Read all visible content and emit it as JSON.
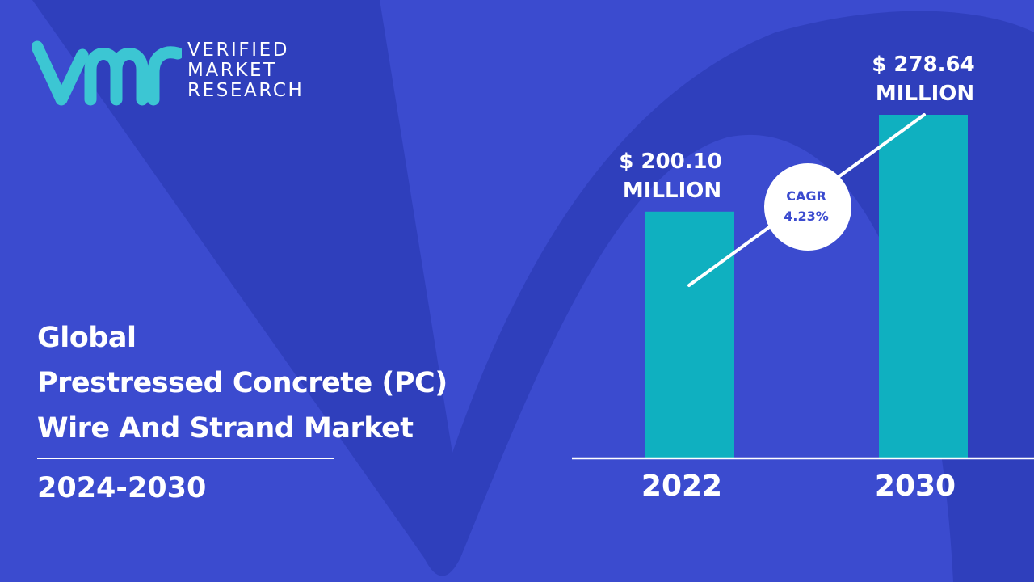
{
  "brand": {
    "line1": "VERIFIED",
    "line2": "MARKET",
    "line3": "RESEARCH",
    "mark_color": "#3cc6d3"
  },
  "report": {
    "title_line1": "Global",
    "title_line2": "Prestressed Concrete (PC)",
    "title_line3": "Wire And Strand Market",
    "period": "2024-2030"
  },
  "colors": {
    "background": "#3b4bcf",
    "background_shape": "#2e3db9",
    "bar": "#0fb0c0",
    "text": "#ffffff",
    "cagr_text": "#3b4bcf"
  },
  "chart_data": {
    "type": "bar",
    "categories": [
      "2022",
      "2030"
    ],
    "values": [
      200.1,
      278.64
    ],
    "value_labels": [
      [
        "$ 200.10",
        "MILLION"
      ],
      [
        "$ 278.64",
        "MILLION"
      ]
    ],
    "cagr": {
      "label": "CAGR",
      "value": "4.23%"
    },
    "ylim": [
      0,
      278.64
    ],
    "grid": false,
    "axis_line": true
  }
}
